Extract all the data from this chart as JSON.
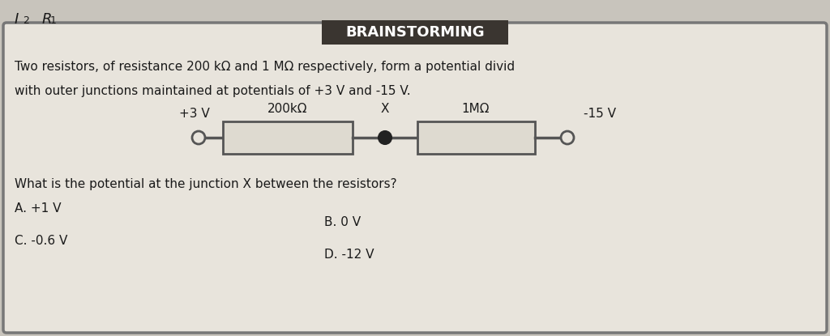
{
  "bg_outer": "#c8c4bc",
  "bg_inner": "#e8e4dc",
  "title_text": "BRAINSTORMING",
  "title_bg": "#3a3530",
  "title_fg": "#ffffff",
  "header_label_i": "I",
  "header_label_2": "2",
  "header_label_r": "R",
  "header_label_1": "1",
  "body_line1": "Two resistors, of resistance 200 kΩ and 1 MΩ respectively, form a potential divid",
  "body_line2": "with outer junctions maintained at potentials of +3 V and -15 V.",
  "question": "What is the potential at the junction X between the resistors?",
  "ans_A": "A. +1 V",
  "ans_B": "B. 0 V",
  "ans_C": "C. -0.6 V",
  "ans_D": "D. -12 V",
  "circuit": {
    "left_voltage": "+3 V",
    "right_voltage": "-15 V",
    "label_r1": "200kΩ",
    "label_r2": "1MΩ",
    "label_x": "X"
  },
  "wire_color": "#555555",
  "resistor_face": "#dedad0",
  "text_color": "#1a1a1a",
  "border_color": "#777777"
}
